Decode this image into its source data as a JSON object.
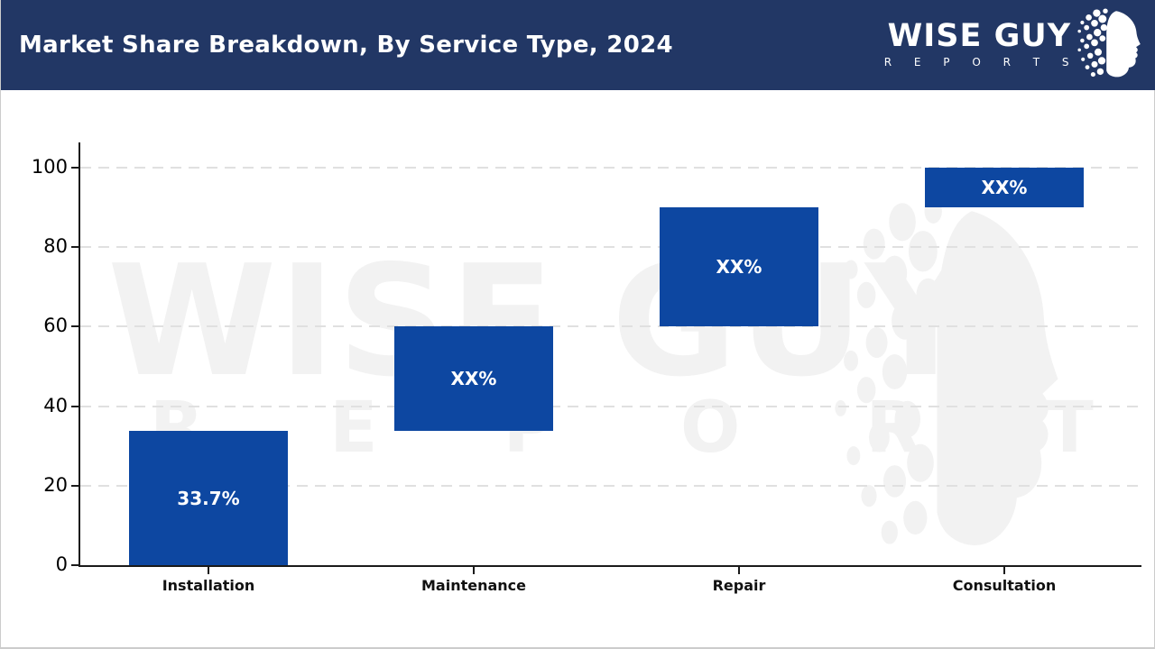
{
  "header": {
    "title": "Market Share Breakdown, By Service Type, 2024",
    "logo": {
      "line1": "WISE GUY",
      "line2": "R E P O R T S"
    }
  },
  "watermark": {
    "line1": "WISE GUY",
    "line2": "R E P O R T S"
  },
  "colors": {
    "header_bg": "#223765",
    "bar": "#0d47a1",
    "bar_label": "#ffffff",
    "grid": "#e0e0e0",
    "axis": "#1a1a1a",
    "watermark": "#f2f2f2",
    "title_text": "#ffffff",
    "tick_label": "#000000"
  },
  "chart_data": {
    "type": "bar",
    "subtype": "waterfall",
    "title": "Market Share Breakdown, By Service Type, 2024",
    "categories": [
      "Installation",
      "Maintenance",
      "Repair",
      "Consultation"
    ],
    "segments": [
      {
        "category": "Installation",
        "start": 0,
        "end": 33.7,
        "label": "33.7%"
      },
      {
        "category": "Maintenance",
        "start": 33.7,
        "end": 60,
        "label": "XX%"
      },
      {
        "category": "Repair",
        "start": 60,
        "end": 90,
        "label": "XX%"
      },
      {
        "category": "Consultation",
        "start": 90,
        "end": 100,
        "label": "XX%"
      }
    ],
    "yticks": [
      0,
      20,
      40,
      60,
      80,
      100
    ],
    "ylim": [
      0,
      106
    ],
    "xlabel": "",
    "ylabel": "",
    "grid": "horizontal-dashed",
    "legend": "none"
  }
}
